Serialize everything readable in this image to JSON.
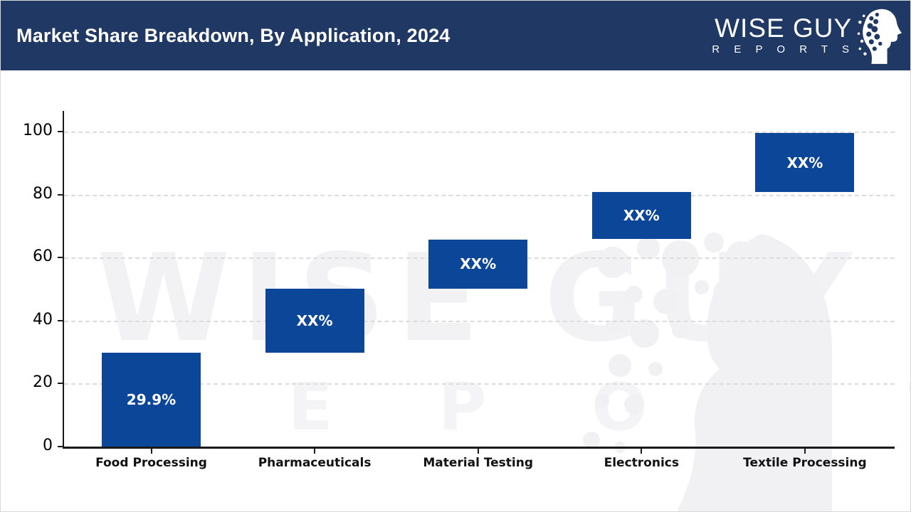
{
  "header": {
    "title": "Market Share Breakdown, By Application, 2024",
    "bg_color": "#1f3864",
    "logo_line1": "WISE GUY",
    "logo_line2": "R E P O R T S"
  },
  "watermark": {
    "line1": "WISE GUY",
    "line2": "R E P O R T S"
  },
  "chart_data": {
    "type": "bar",
    "subtype": "floating-waterfall",
    "title": "Market Share Breakdown, By Application, 2024",
    "categories": [
      "Food Processing",
      "Pharmaceuticals",
      "Material Testing",
      "Electronics",
      "Textile Processing"
    ],
    "segments": [
      {
        "category": "Food Processing",
        "start": 0,
        "end": 29.9,
        "label": "29.9%"
      },
      {
        "category": "Pharmaceuticals",
        "start": 29.9,
        "end": 50.2,
        "label": "XX%"
      },
      {
        "category": "Material Testing",
        "start": 50.2,
        "end": 65.8,
        "label": "XX%"
      },
      {
        "category": "Electronics",
        "start": 65.8,
        "end": 80.8,
        "label": "XX%"
      },
      {
        "category": "Textile Processing",
        "start": 80.8,
        "end": 99.5,
        "label": "XX%"
      }
    ],
    "yticks": [
      0,
      20,
      40,
      60,
      80,
      100
    ],
    "ylim": [
      0,
      105
    ],
    "xlabel": "",
    "ylabel": "",
    "legend": "none",
    "grid": "horizontal-dashed",
    "bar_color": "#0c4699",
    "bar_label_color": "#ffffff",
    "axis_color": "#1a1a1a",
    "gridline_color": "#dcdcdc"
  }
}
